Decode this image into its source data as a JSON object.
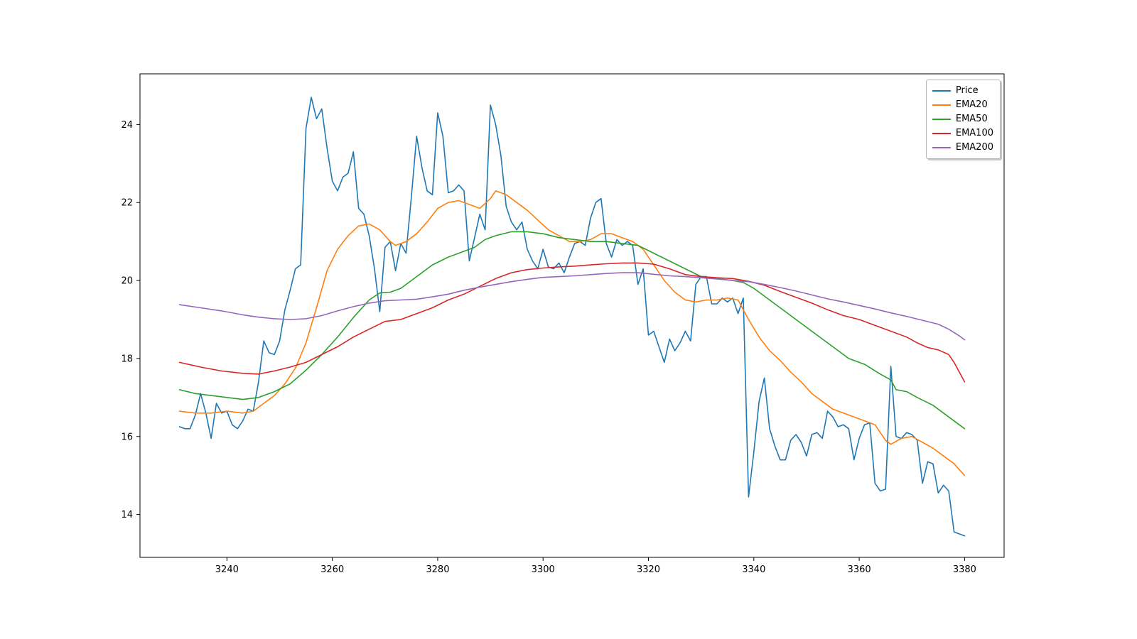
{
  "chart_data": {
    "type": "line",
    "title": "",
    "xlabel": "",
    "ylabel": "",
    "grid": false,
    "legend_position": "upper right",
    "xlim": [
      3223.5,
      3387.5
    ],
    "ylim": [
      12.9,
      25.3
    ],
    "x_ticks": [
      3240,
      3260,
      3280,
      3300,
      3320,
      3340,
      3360,
      3380
    ],
    "y_ticks": [
      14,
      16,
      18,
      20,
      22,
      24
    ],
    "axis_color": "#000000",
    "tick_label_color": "#000000",
    "series": [
      {
        "name": "Price",
        "color": "#1f77b4",
        "x_start": 3231,
        "x_step": 1,
        "y": [
          16.25,
          16.2,
          16.2,
          16.55,
          17.1,
          16.6,
          15.95,
          16.85,
          16.6,
          16.65,
          16.3,
          16.2,
          16.4,
          16.7,
          16.65,
          17.4,
          18.45,
          18.15,
          18.1,
          18.45,
          19.25,
          19.75,
          20.3,
          20.4,
          23.9,
          24.7,
          24.15,
          24.4,
          23.4,
          22.55,
          22.3,
          22.65,
          22.75,
          23.3,
          21.85,
          21.7,
          21.15,
          20.3,
          19.2,
          20.85,
          21.0,
          20.25,
          20.95,
          20.7,
          22.15,
          23.7,
          22.9,
          22.3,
          22.2,
          24.3,
          23.7,
          22.25,
          22.3,
          22.45,
          22.3,
          20.5,
          21.1,
          21.7,
          21.3,
          24.5,
          24.0,
          23.2,
          21.9,
          21.5,
          21.3,
          21.5,
          20.8,
          20.5,
          20.3,
          20.8,
          20.35,
          20.3,
          20.45,
          20.2,
          20.6,
          20.95,
          21.0,
          20.9,
          21.6,
          22.0,
          22.1,
          20.95,
          20.6,
          21.05,
          20.9,
          21.0,
          20.9,
          19.9,
          20.3,
          18.6,
          18.7,
          18.3,
          17.9,
          18.5,
          18.2,
          18.4,
          18.7,
          18.45,
          19.9,
          20.1,
          20.1,
          19.4,
          19.4,
          19.55,
          19.45,
          19.55,
          19.15,
          19.55,
          14.45,
          15.6,
          16.9,
          17.5,
          16.2,
          15.75,
          15.4,
          15.4,
          15.9,
          16.05,
          15.85,
          15.5,
          16.05,
          16.1,
          15.95,
          16.65,
          16.5,
          16.25,
          16.3,
          16.2,
          15.4,
          15.95,
          16.3,
          16.35,
          14.8,
          14.6,
          14.65,
          17.8,
          16.0,
          15.95,
          16.1,
          16.05,
          15.9,
          14.8,
          15.35,
          15.3,
          14.55,
          14.75,
          14.6,
          13.55,
          13.5,
          13.45
        ]
      },
      {
        "name": "EMA20",
        "color": "#ff7f0e",
        "x": [
          3231,
          3234,
          3237,
          3240,
          3243,
          3245,
          3247,
          3249,
          3251,
          3253,
          3255,
          3257,
          3259,
          3261,
          3263,
          3265,
          3267,
          3269,
          3271,
          3272,
          3274,
          3276,
          3278,
          3280,
          3282,
          3284,
          3286,
          3288,
          3290,
          3291,
          3293,
          3295,
          3297,
          3299,
          3301,
          3303,
          3305,
          3307,
          3309,
          3311,
          3313,
          3315,
          3317,
          3319,
          3321,
          3323,
          3325,
          3327,
          3329,
          3331,
          3333,
          3335,
          3337,
          3339,
          3341,
          3343,
          3345,
          3347,
          3349,
          3351,
          3353,
          3355,
          3357,
          3359,
          3361,
          3363,
          3365,
          3366,
          3368,
          3370,
          3372,
          3374,
          3376,
          3378,
          3380
        ],
        "y": [
          16.65,
          16.6,
          16.6,
          16.65,
          16.6,
          16.65,
          16.85,
          17.05,
          17.35,
          17.75,
          18.4,
          19.3,
          20.25,
          20.8,
          21.15,
          21.4,
          21.45,
          21.3,
          21.0,
          20.9,
          21.0,
          21.2,
          21.5,
          21.85,
          22.0,
          22.05,
          21.95,
          21.85,
          22.1,
          22.3,
          22.2,
          22.0,
          21.8,
          21.55,
          21.3,
          21.15,
          21.0,
          21.0,
          21.05,
          21.2,
          21.2,
          21.1,
          21.0,
          20.8,
          20.4,
          20.0,
          19.7,
          19.5,
          19.45,
          19.5,
          19.5,
          19.55,
          19.5,
          19.0,
          18.55,
          18.2,
          17.95,
          17.65,
          17.4,
          17.1,
          16.9,
          16.7,
          16.6,
          16.5,
          16.4,
          16.3,
          15.9,
          15.8,
          15.95,
          16.0,
          15.85,
          15.7,
          15.5,
          15.3,
          15.0
        ]
      },
      {
        "name": "EMA50",
        "color": "#2ca02c",
        "x": [
          3231,
          3234,
          3237,
          3240,
          3243,
          3246,
          3249,
          3252,
          3255,
          3258,
          3261,
          3264,
          3267,
          3269,
          3271,
          3273,
          3276,
          3279,
          3282,
          3285,
          3287,
          3289,
          3291,
          3294,
          3297,
          3300,
          3303,
          3306,
          3309,
          3312,
          3315,
          3318,
          3321,
          3324,
          3327,
          3330,
          3333,
          3336,
          3338,
          3340,
          3343,
          3346,
          3349,
          3352,
          3355,
          3358,
          3361,
          3364,
          3366,
          3367,
          3369,
          3371,
          3374,
          3377,
          3380
        ],
        "y": [
          17.2,
          17.1,
          17.05,
          17.0,
          16.95,
          17.0,
          17.15,
          17.35,
          17.7,
          18.1,
          18.55,
          19.05,
          19.5,
          19.68,
          19.7,
          19.8,
          20.1,
          20.4,
          20.6,
          20.75,
          20.85,
          21.05,
          21.15,
          21.25,
          21.25,
          21.2,
          21.1,
          21.05,
          21.0,
          21.0,
          20.95,
          20.9,
          20.7,
          20.5,
          20.3,
          20.1,
          20.05,
          20.0,
          19.95,
          19.8,
          19.5,
          19.2,
          18.9,
          18.6,
          18.3,
          18.0,
          17.85,
          17.6,
          17.45,
          17.2,
          17.15,
          17.0,
          16.8,
          16.5,
          16.2
        ]
      },
      {
        "name": "EMA100",
        "color": "#d62728",
        "x": [
          3231,
          3235,
          3239,
          3243,
          3246,
          3249,
          3252,
          3255,
          3258,
          3261,
          3264,
          3267,
          3270,
          3273,
          3276,
          3279,
          3282,
          3285,
          3288,
          3291,
          3294,
          3297,
          3300,
          3303,
          3306,
          3309,
          3312,
          3315,
          3318,
          3321,
          3324,
          3327,
          3330,
          3333,
          3336,
          3339,
          3342,
          3345,
          3348,
          3351,
          3354,
          3357,
          3360,
          3363,
          3366,
          3369,
          3371,
          3373,
          3375,
          3377,
          3378,
          3379,
          3380
        ],
        "y": [
          17.9,
          17.78,
          17.68,
          17.62,
          17.6,
          17.68,
          17.78,
          17.9,
          18.1,
          18.3,
          18.55,
          18.75,
          18.95,
          19.0,
          19.15,
          19.3,
          19.5,
          19.65,
          19.85,
          20.05,
          20.2,
          20.28,
          20.32,
          20.35,
          20.37,
          20.4,
          20.43,
          20.45,
          20.45,
          20.42,
          20.3,
          20.15,
          20.1,
          20.07,
          20.05,
          19.98,
          19.88,
          19.72,
          19.57,
          19.42,
          19.25,
          19.1,
          19.0,
          18.85,
          18.7,
          18.55,
          18.4,
          18.28,
          18.22,
          18.1,
          17.9,
          17.65,
          17.4
        ]
      },
      {
        "name": "EMA200",
        "color": "#9467bd",
        "x": [
          3231,
          3235,
          3239,
          3243,
          3246,
          3249,
          3252,
          3255,
          3258,
          3261,
          3264,
          3267,
          3270,
          3273,
          3276,
          3279,
          3282,
          3285,
          3288,
          3291,
          3294,
          3297,
          3300,
          3303,
          3306,
          3309,
          3312,
          3315,
          3318,
          3321,
          3324,
          3327,
          3330,
          3333,
          3336,
          3339,
          3342,
          3345,
          3348,
          3351,
          3354,
          3357,
          3360,
          3363,
          3366,
          3369,
          3372,
          3375,
          3377,
          3379,
          3380
        ],
        "y": [
          19.38,
          19.3,
          19.22,
          19.12,
          19.06,
          19.02,
          19.0,
          19.02,
          19.1,
          19.22,
          19.33,
          19.42,
          19.48,
          19.5,
          19.52,
          19.58,
          19.65,
          19.75,
          19.83,
          19.9,
          19.97,
          20.03,
          20.08,
          20.1,
          20.12,
          20.15,
          20.18,
          20.2,
          20.2,
          20.16,
          20.12,
          20.1,
          20.07,
          20.04,
          20.0,
          19.97,
          19.9,
          19.82,
          19.73,
          19.63,
          19.53,
          19.45,
          19.36,
          19.27,
          19.17,
          19.08,
          18.98,
          18.88,
          18.75,
          18.58,
          18.48
        ]
      }
    ]
  }
}
